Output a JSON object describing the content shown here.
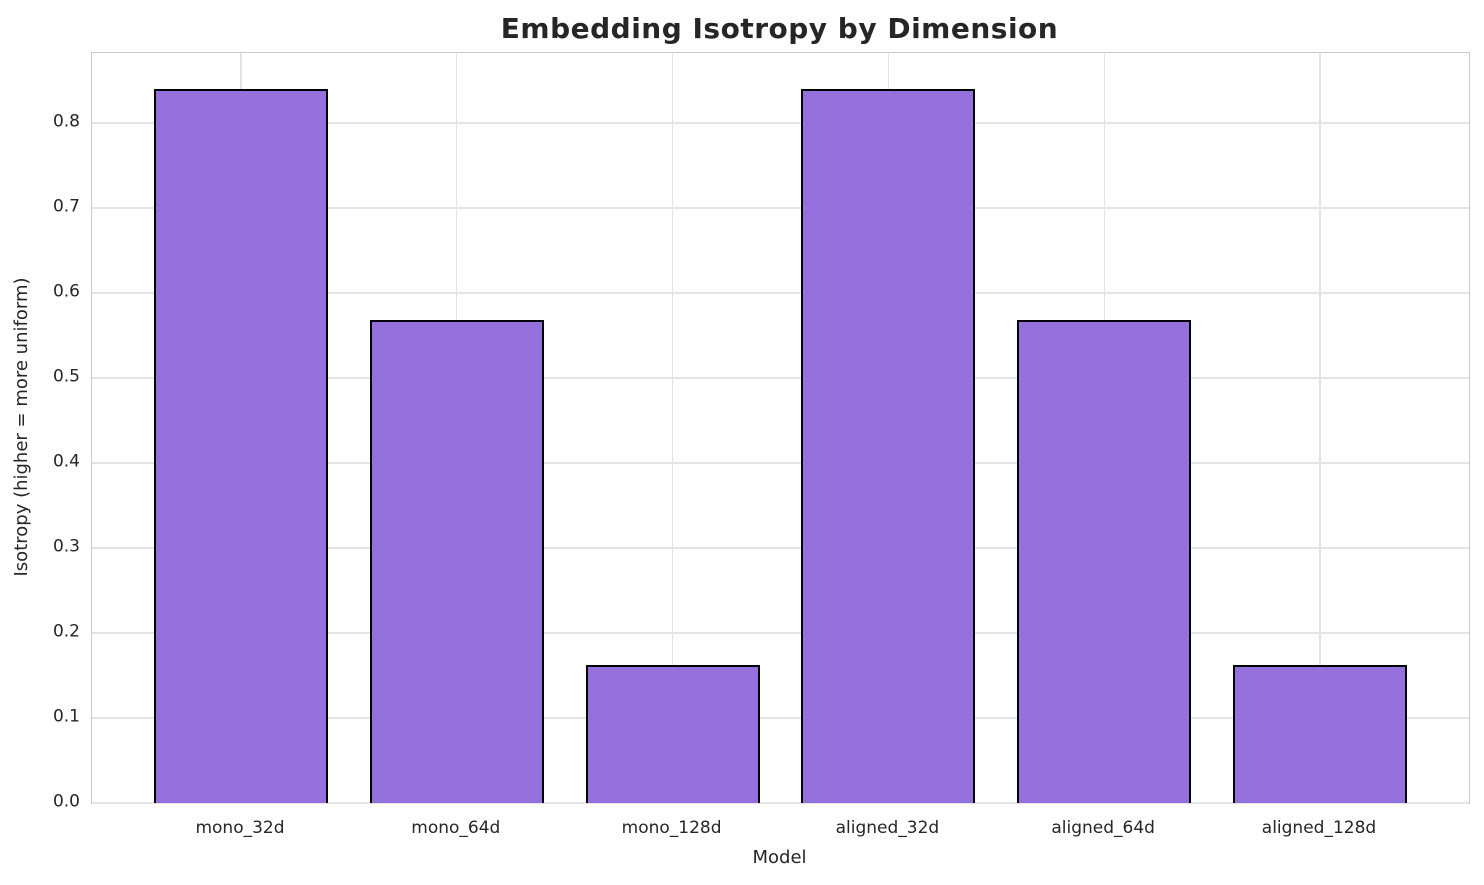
{
  "chart_data": {
    "type": "bar",
    "title": "Embedding Isotropy by Dimension",
    "xlabel": "Model",
    "ylabel": "Isotropy (higher = more uniform)",
    "categories": [
      "mono_32d",
      "mono_64d",
      "mono_128d",
      "aligned_32d",
      "aligned_64d",
      "aligned_128d"
    ],
    "values": [
      0.84,
      0.568,
      0.162,
      0.84,
      0.568,
      0.162
    ],
    "ylim": [
      0,
      0.8825
    ],
    "yticks": [
      0.0,
      0.1,
      0.2,
      0.3,
      0.4,
      0.5,
      0.6,
      0.7,
      0.8
    ],
    "ytick_labels": [
      "0.0",
      "0.1",
      "0.2",
      "0.3",
      "0.4",
      "0.5",
      "0.6",
      "0.7",
      "0.8"
    ],
    "grid": true,
    "legend": "none",
    "bar_color": "#9370DB",
    "bar_edge_color": "#000000",
    "grid_color": "#e4e4e4",
    "spine_color": "#cbcbcb",
    "text_color": "#262626",
    "background_color": "#ffffff"
  }
}
